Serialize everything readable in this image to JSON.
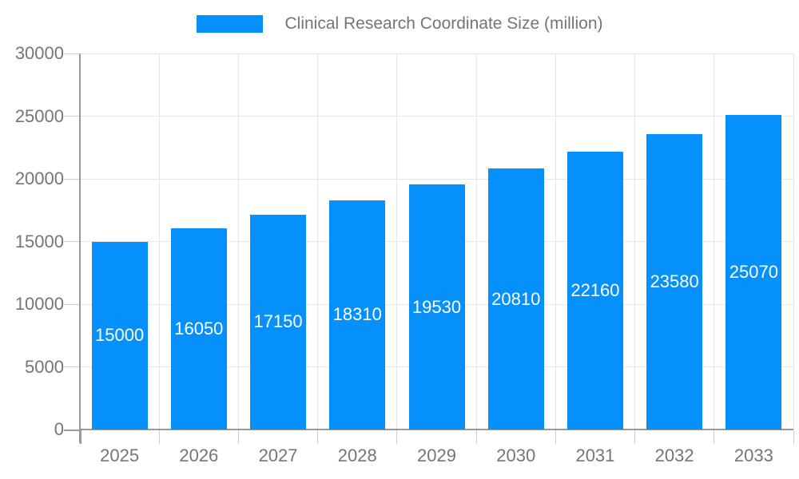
{
  "legend": {
    "label": "Clinical Research Coordinate Size (million)"
  },
  "chart_data": {
    "type": "bar",
    "title": "Clinical Research Coordinate Size (million)",
    "categories": [
      "2025",
      "2026",
      "2027",
      "2028",
      "2029",
      "2030",
      "2031",
      "2032",
      "2033"
    ],
    "series": [
      {
        "name": "Clinical Research Coordinate Size (million)",
        "values": [
          15000,
          16050,
          17150,
          18310,
          19530,
          20810,
          22160,
          23580,
          25070
        ]
      }
    ],
    "value_labels": [
      15000,
      16050,
      17150,
      18310,
      19530,
      20810,
      22160,
      23580,
      25070
    ],
    "value_label_position": "inside-center",
    "xlabel": "",
    "ylabel": "",
    "ylim": [
      0,
      30000
    ],
    "yticks": [
      0,
      5000,
      10000,
      15000,
      20000,
      25000,
      30000
    ],
    "grid": true,
    "legend_position": "top",
    "colors": {
      "bar": "#0590fb",
      "grid": "#e6e6e6",
      "axis": "#999999",
      "tick": "#cccccc",
      "axis_text": "#757575",
      "value_text": "#ffffff",
      "background": "#ffffff"
    }
  }
}
